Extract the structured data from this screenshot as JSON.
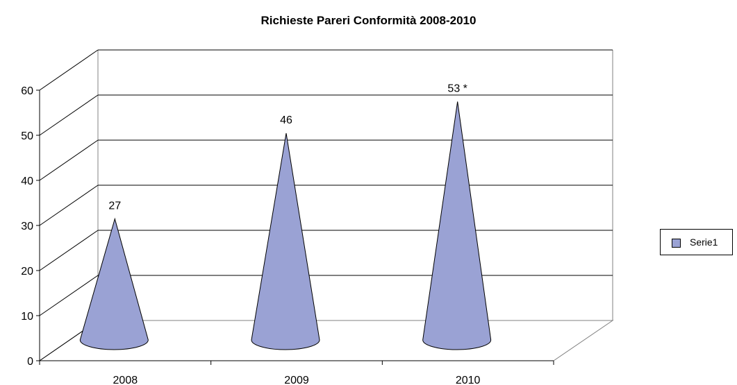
{
  "chart_data": {
    "type": "bar",
    "shape": "cone-3d",
    "title": "Richieste Pareri Conformità 2008-2010",
    "categories": [
      "2008",
      "2009",
      "2010"
    ],
    "series": [
      {
        "name": "Serie1",
        "values": [
          27,
          46,
          53
        ],
        "color": "#9aa2d4"
      }
    ],
    "data_labels": [
      "27",
      "46",
      "53 *"
    ],
    "ylim": [
      0,
      60
    ],
    "yticks": [
      0,
      10,
      20,
      30,
      40,
      50,
      60
    ],
    "grid": true,
    "legend_position": "right",
    "xlabel": "",
    "ylabel": ""
  }
}
